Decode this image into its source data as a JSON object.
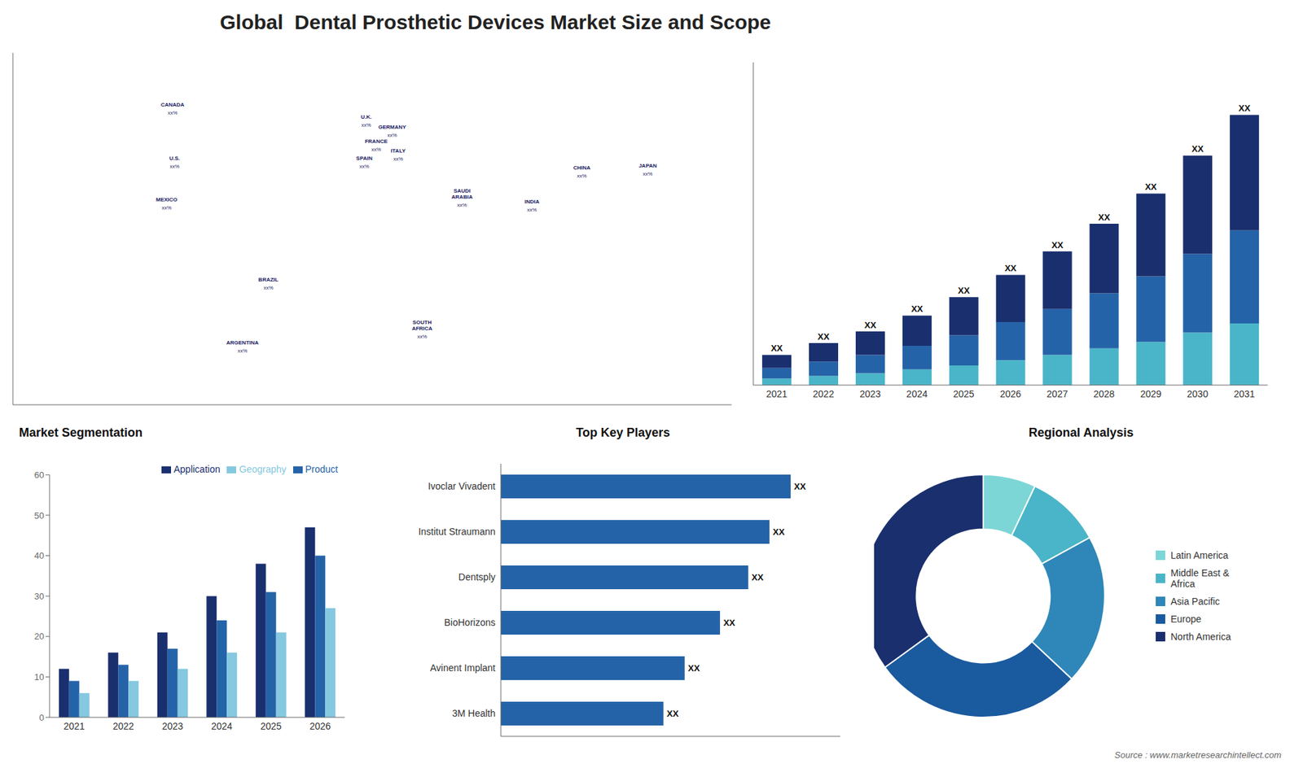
{
  "title": "Global  Dental Prosthetic Devices Market Size and Scope",
  "annotations": [
    "Source : www.marketresearchintellect.com"
  ],
  "chart_data": [
    {
      "type": "scatter",
      "x": [
        -100,
        -99,
        -103,
        -52,
        -65,
        -3,
        2,
        10,
        -4,
        13,
        45,
        25,
        105,
        80,
        138
      ],
      "values": [
        62,
        40,
        23,
        -10,
        -36,
        57,
        47,
        53,
        40,
        43,
        24,
        -30,
        36,
        22,
        37
      ],
      "labels": [
        "CANADA",
        "U.S.",
        "MEXICO",
        "BRAZIL",
        "ARGENTINA",
        "U.K.",
        "FRANCE",
        "GERMANY",
        "SPAIN",
        "ITALY",
        "SAUDI\nARABIA",
        "SOUTH\nAFRICA",
        "CHINA",
        "INDIA",
        "JAPAN"
      ],
      "annotations": [
        "xx%",
        "xx%",
        "xx%",
        "xx%",
        "xx%",
        "xx%",
        "xx%",
        "xx%",
        "xx%",
        "xx%",
        "xx%",
        "xx%",
        "xx%",
        "xx%",
        "xx%"
      ],
      "color": "#1a2060",
      "marker": "none",
      "xlim": [
        -180,
        180
      ],
      "ylim": [
        -60,
        85
      ],
      "xticks": [],
      "yticks": [],
      "tick_labels": false,
      "grid": false
    },
    {
      "type": "bar",
      "stacked": true,
      "categories": [
        "2021",
        "2022",
        "2023",
        "2024",
        "2025",
        "2026",
        "2027",
        "2028",
        "2029",
        "2030",
        "2031"
      ],
      "series": [
        {
          "color": "#4ab5c8",
          "values": [
            0.5,
            0.7,
            0.9,
            1.2,
            1.5,
            1.9,
            2.3,
            2.8,
            3.3,
            4.0,
            4.7
          ]
        },
        {
          "color": "#2563a8",
          "values": [
            0.8,
            1.1,
            1.4,
            1.8,
            2.3,
            2.9,
            3.5,
            4.2,
            5.0,
            6.0,
            7.1
          ]
        },
        {
          "color": "#1a2f6e",
          "values": [
            1.0,
            1.4,
            1.8,
            2.3,
            2.9,
            3.6,
            4.4,
            5.3,
            6.3,
            7.5,
            8.8
          ]
        }
      ],
      "value_labels": [
        "XX",
        "XX",
        "XX",
        "XX",
        "XX",
        "XX",
        "XX",
        "XX",
        "XX",
        "XX",
        "XX"
      ],
      "ylim": [
        0,
        24.6
      ],
      "yticks": [],
      "tick_labels": "x",
      "grid": false
    },
    {
      "type": "bar",
      "title": "Market Segmentation",
      "categories": [
        "2021",
        "2022",
        "2023",
        "2024",
        "2025",
        "2026"
      ],
      "series": [
        {
          "name": "Application",
          "color": "#1a2f6e",
          "values": [
            12,
            16,
            21,
            30,
            38,
            47
          ]
        },
        {
          "name": "Product",
          "color": "#2563a8",
          "values": [
            9,
            13,
            17,
            24,
            31,
            40
          ]
        },
        {
          "name": "Geography",
          "color": "#85c8e0",
          "values": [
            6,
            9,
            12,
            16,
            21,
            27
          ]
        }
      ],
      "ylim": [
        0,
        60
      ],
      "yticks": [
        0,
        10,
        20,
        30,
        40,
        50,
        60
      ],
      "legend": "upper right",
      "grid": false
    },
    {
      "type": "bar",
      "title": "Top Key Players",
      "orientation": "horizontal",
      "categories": [
        "Ivoclar Vivadent",
        "Institut Straumann",
        "Dentsply",
        "BioHorizons",
        "Avinent Implant",
        "3M Health"
      ],
      "values": [
        82,
        76,
        70,
        62,
        52,
        46
      ],
      "value_labels": [
        "XX",
        "XX",
        "XX",
        "XX",
        "XX",
        "XX"
      ],
      "color": "#2563a8",
      "xlim": [
        0,
        96
      ],
      "xticks": [],
      "tick_labels": "y",
      "grid": false
    },
    {
      "type": "donut",
      "title": "Regional Analysis",
      "categories": [
        "Latin America",
        "Middle East &\nAfrica",
        "Asia Pacific",
        "Europe",
        "North America"
      ],
      "values": [
        7,
        10,
        20,
        28,
        35
      ],
      "colors": [
        "#7dd6d6",
        "#4ab5c8",
        "#2e87b8",
        "#1a5a9e",
        "#1a2f6e"
      ],
      "legend": "right"
    }
  ]
}
